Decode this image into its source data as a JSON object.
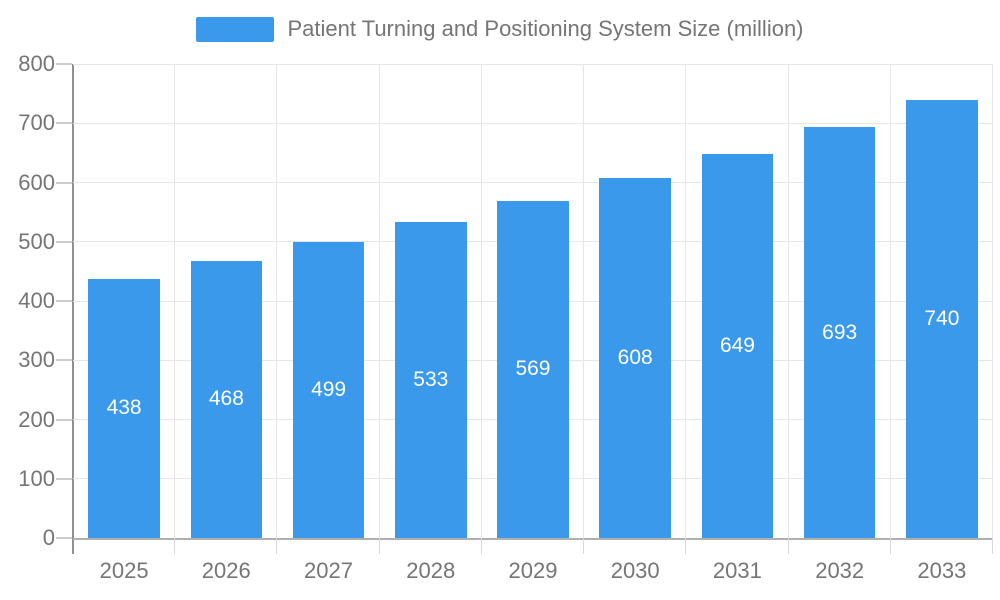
{
  "chart_data": {
    "type": "bar",
    "title": "Patient Turning and Positioning System Size (million)",
    "categories": [
      "2025",
      "2026",
      "2027",
      "2028",
      "2029",
      "2030",
      "2031",
      "2032",
      "2033"
    ],
    "values": [
      438,
      468,
      499,
      533,
      569,
      608,
      649,
      693,
      740
    ],
    "series": [
      {
        "name": "Patient Turning and Positioning System Size (million)",
        "values": [
          438,
          468,
          499,
          533,
          569,
          608,
          649,
          693,
          740
        ]
      }
    ],
    "xlabel": "",
    "ylabel": "",
    "ylim": [
      0,
      800
    ],
    "y_ticks": [
      0,
      100,
      200,
      300,
      400,
      500,
      600,
      700,
      800
    ],
    "grid": true,
    "legend_position": "top",
    "value_labels": "centered-in-bar",
    "colors": {
      "bar": "#3b99ec",
      "value_label": "#ffffff",
      "axis_label": "#757575",
      "gridline": "#e6e6e6",
      "x_axis_line": "#b0b0b0",
      "y_axis_line": "#909090",
      "background": "#ffffff"
    }
  }
}
